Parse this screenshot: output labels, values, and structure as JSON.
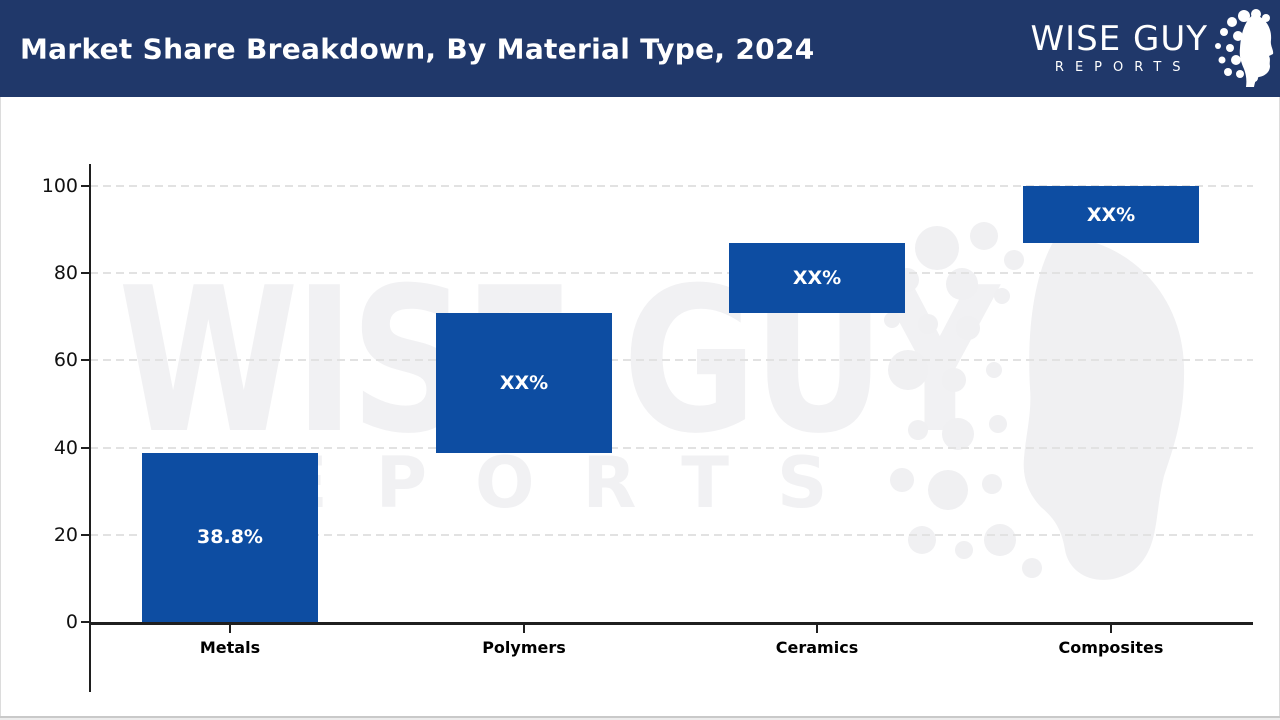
{
  "header": {
    "title": "Market Share Breakdown, By Material Type, 2024",
    "logo": {
      "primary": "WISE GUY",
      "secondary": "REPORTS"
    }
  },
  "watermark": {
    "primary": "WISE GUY",
    "secondary": "REPORTS"
  },
  "chart_data": {
    "type": "bar",
    "variant": "waterfall",
    "title": "Market Share Breakdown, By Material Type, 2024",
    "categories": [
      "Metals",
      "Polymers",
      "Ceramics",
      "Composites"
    ],
    "bar_labels": [
      "38.8%",
      "XX%",
      "XX%",
      "XX%"
    ],
    "segments": [
      {
        "category": "Metals",
        "start": 0,
        "end": 38.8,
        "label": "38.8%"
      },
      {
        "category": "Polymers",
        "start": 38.8,
        "end": 70.9,
        "label": "XX%"
      },
      {
        "category": "Ceramics",
        "start": 70.9,
        "end": 86.9,
        "label": "XX%"
      },
      {
        "category": "Composites",
        "start": 86.9,
        "end": 100,
        "label": "XX%"
      }
    ],
    "xlabel": "",
    "ylabel": "",
    "yticks": [
      0,
      20,
      40,
      60,
      80,
      100
    ],
    "ylim": [
      0,
      105
    ],
    "grid": "horizontal-dashed",
    "legend": "none",
    "bar_color": "#0d4da2",
    "bar_label_color": "#ffffff"
  },
  "colors": {
    "header_bg": "#20386a",
    "bar": "#0d4da2",
    "axis": "#1f1f1f",
    "gridline": "#e2e2e2",
    "watermark": "#f1f1f3",
    "page_border": "#c9c9c9"
  }
}
